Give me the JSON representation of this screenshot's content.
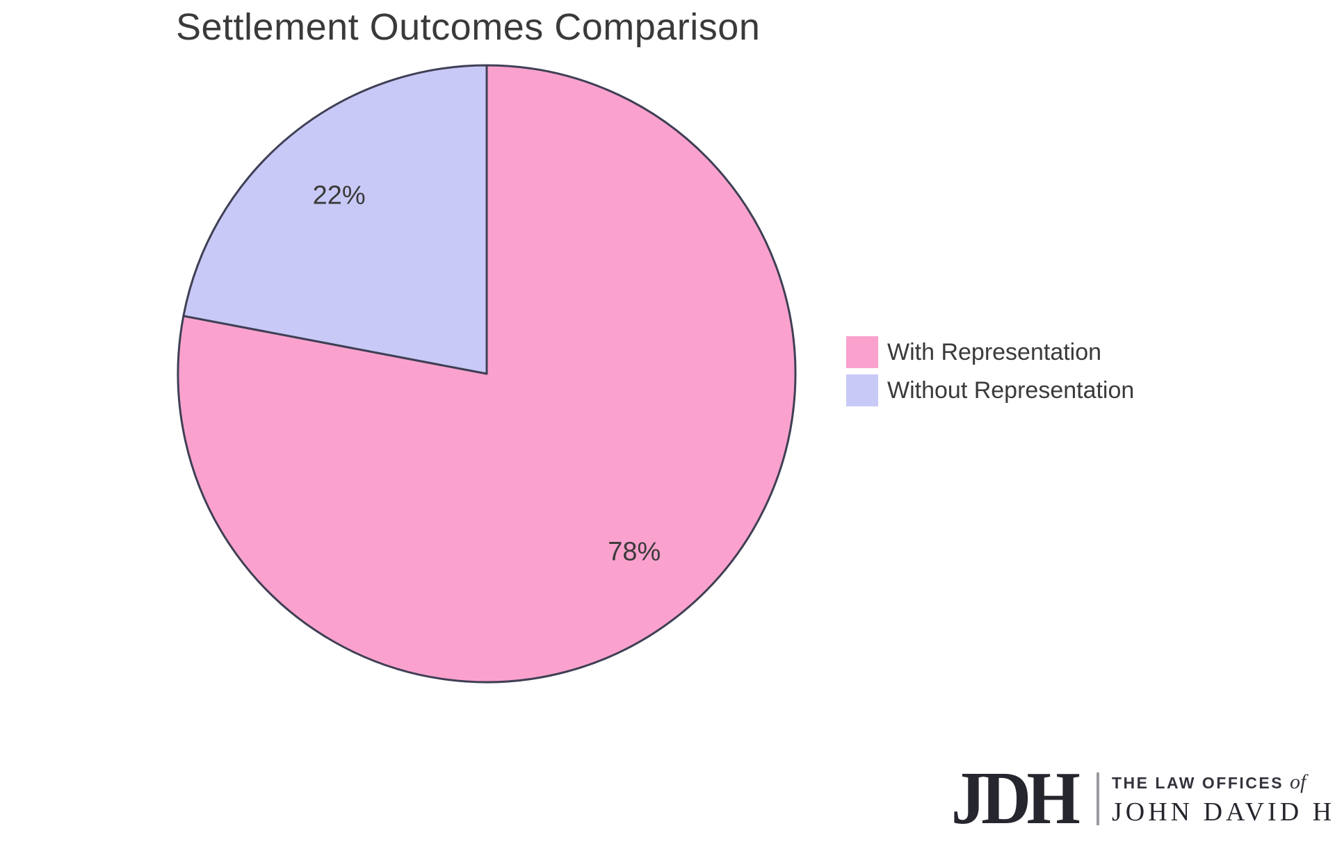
{
  "title": "Settlement Outcomes Comparison",
  "chart_data": {
    "type": "pie",
    "title": "Settlement Outcomes Comparison",
    "start_angle_deg": 90,
    "direction": "clockwise",
    "stroke_color": "#3f3f55",
    "stroke_width": 3,
    "label_color": "#3a3a3a",
    "legend_position": "right",
    "slices": [
      {
        "label": "With Representation",
        "value": 78,
        "pct_label": "78%",
        "color": "#faa2cd"
      },
      {
        "label": "Without Representation",
        "value": 22,
        "pct_label": "22%",
        "color": "#c9c9f7"
      }
    ]
  },
  "logo": {
    "monogram": "JDH",
    "tagline_prefix": "THE LAW OFFICES",
    "tagline_of": "of",
    "name": "JOHN DAVID HART"
  }
}
